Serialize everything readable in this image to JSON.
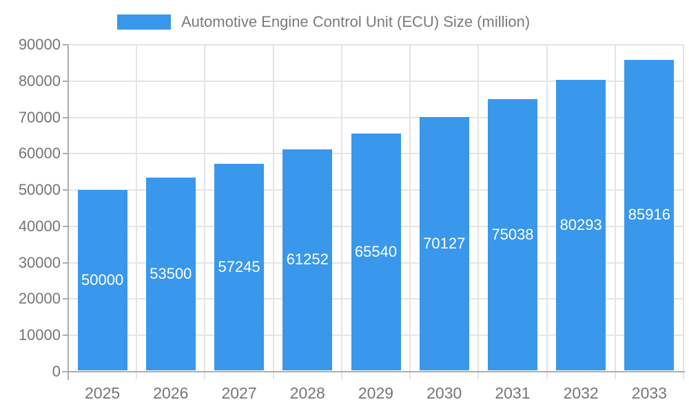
{
  "chart_data": {
    "type": "bar",
    "title": "Automotive Engine Control Unit (ECU) Size (million)",
    "legend": {
      "label": "Automotive Engine Control Unit (ECU) Size (million)",
      "position": "top"
    },
    "categories": [
      "2025",
      "2026",
      "2027",
      "2028",
      "2029",
      "2030",
      "2031",
      "2032",
      "2033"
    ],
    "series": [
      {
        "name": "Automotive Engine Control Unit (ECU) Size (million)",
        "values": [
          50000,
          53500,
          57245,
          61252,
          65540,
          70127,
          75038,
          80293,
          85916
        ]
      }
    ],
    "data_labels": [
      "50000",
      "53500",
      "57245",
      "61252",
      "65540",
      "70127",
      "75038",
      "80293",
      "85916"
    ],
    "xlabel": "",
    "ylabel": "",
    "ylim": [
      0,
      90000
    ],
    "ytick_step": 10000,
    "y_ticks": [
      0,
      10000,
      20000,
      30000,
      40000,
      50000,
      60000,
      70000,
      80000,
      90000
    ],
    "grid": true,
    "colors": {
      "bar": "#3998ec",
      "grid": "#e4e4e4",
      "axis": "#adadad",
      "axis_label": "#757575",
      "bar_label": "#ffffff",
      "legend_text": "#7a7a7a",
      "background": "#ffffff"
    }
  }
}
